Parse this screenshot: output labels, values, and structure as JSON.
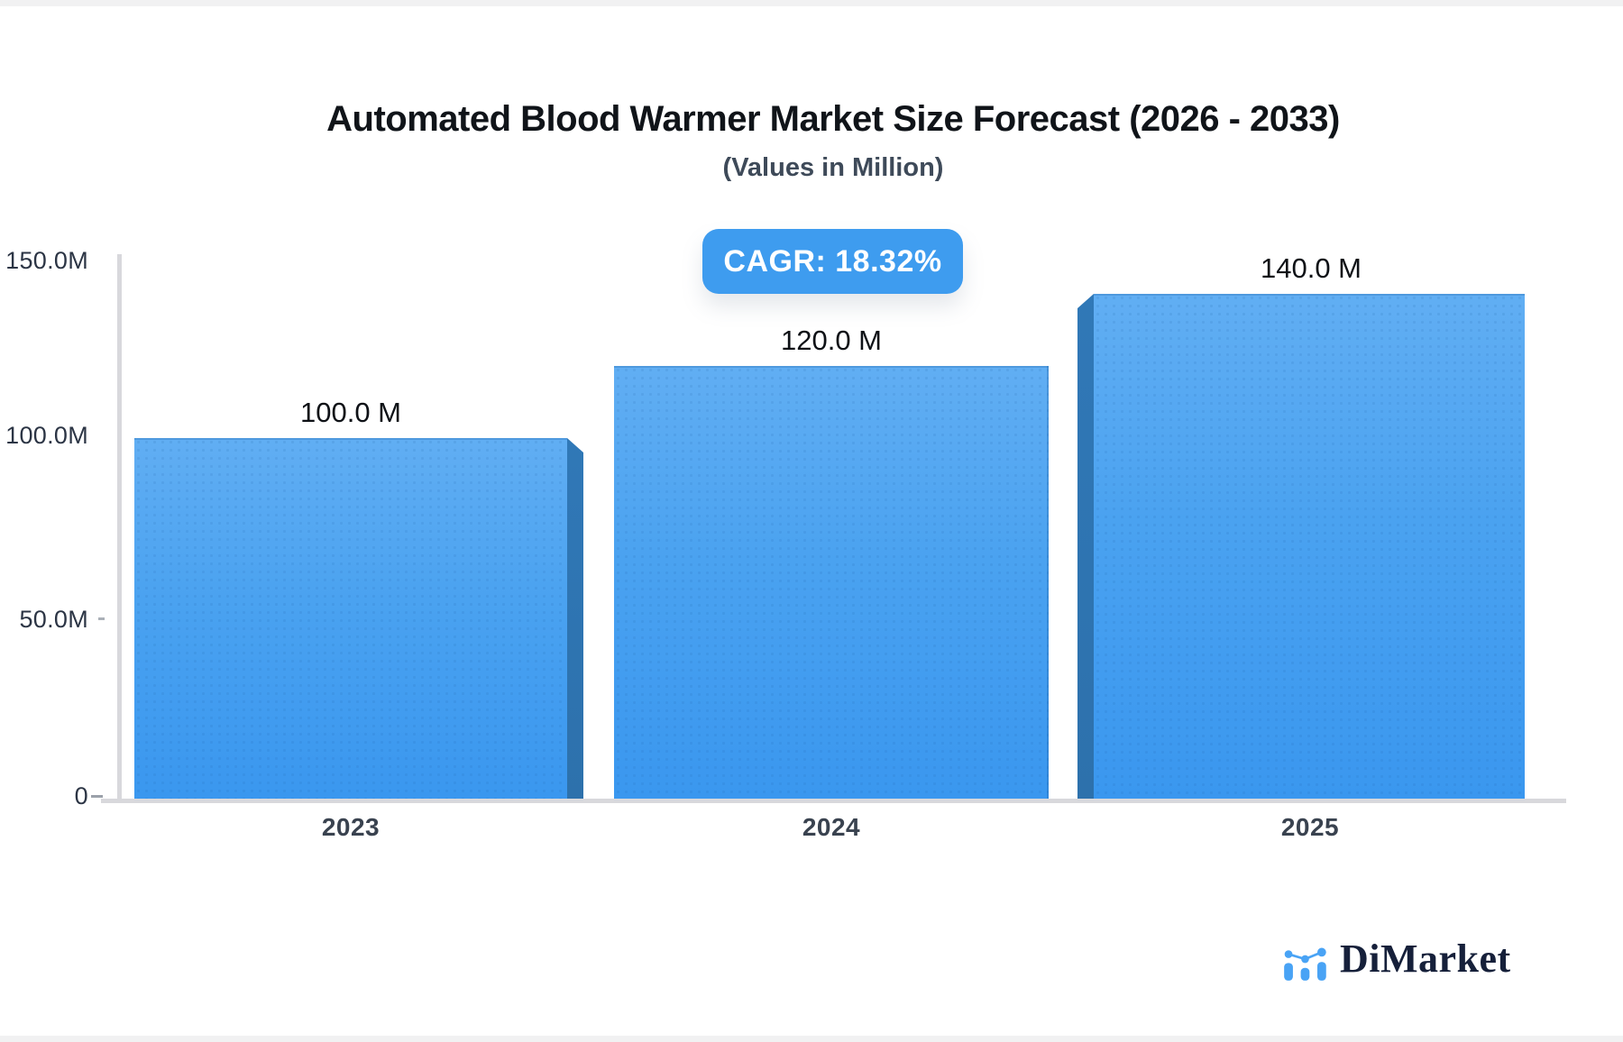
{
  "header": {
    "title": "Automated Blood Warmer Market Size Forecast (2026 - 2033)",
    "subtitle": "(Values in Million)"
  },
  "cagr_badge": {
    "text": "CAGR: 18.32%",
    "bg_color": "#3E9CEF"
  },
  "y_axis": {
    "tick_labels": [
      "150.0M",
      "100.0M",
      "50.0M",
      "0"
    ]
  },
  "bars": [
    {
      "year": "2023",
      "value_label": "100.0 M"
    },
    {
      "year": "2024",
      "value_label": "120.0 M"
    },
    {
      "year": "2025",
      "value_label": "140.0 M"
    }
  ],
  "logo": {
    "name": "DiMarket"
  },
  "colors": {
    "bar_fill": "#429DF0",
    "bar_side": "#2E76B4",
    "axis_line": "#D8D8DC",
    "badge_bg": "#3E9CEF",
    "logo_blue": "#49A3F5",
    "logo_navy": "#16203A"
  },
  "chart_data": {
    "type": "bar",
    "title": "Automated Blood Warmer Market Size Forecast (2026 - 2033)",
    "subtitle": "(Values in Million)",
    "categories": [
      "2023",
      "2024",
      "2025"
    ],
    "values": [
      100.0,
      120.0,
      140.0
    ],
    "unit": "M",
    "value_labels": [
      "100.0 M",
      "120.0 M",
      "140.0 M"
    ],
    "annotation": "CAGR: 18.32%",
    "xlabel": "",
    "ylabel": "",
    "ytick_labels": [
      "150.0M",
      "100.0M",
      "50.0M",
      "0"
    ],
    "ylim": [
      0,
      150
    ],
    "grid": false,
    "legend": false,
    "bar_color": "#429DF0"
  }
}
